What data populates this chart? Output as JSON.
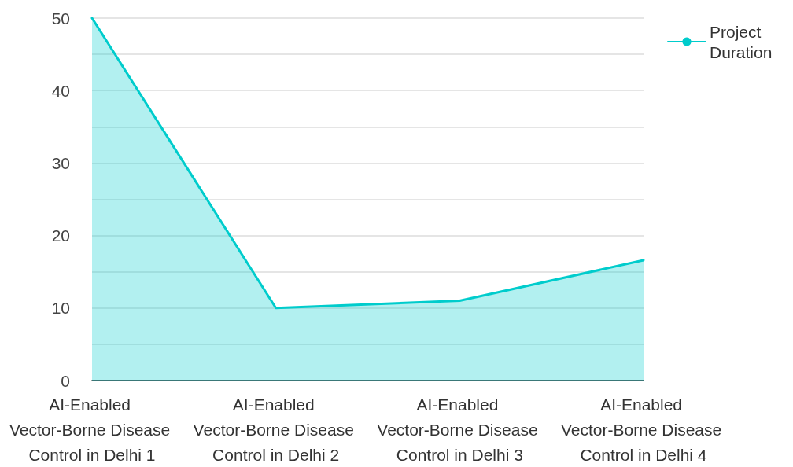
{
  "chart_data": {
    "type": "area",
    "categories": [
      "AI-Enabled Vector-Borne Disease Control in Delhi 1",
      "AI-Enabled Vector-Borne Disease Control in Delhi 2",
      "AI-Enabled Vector-Borne Disease Control in Delhi 3",
      "AI-Enabled Vector-Borne Disease Control in Delhi 4"
    ],
    "series": [
      {
        "name": "Project Duration",
        "color": "#00cccc",
        "values": [
          50,
          10,
          11,
          16.6
        ]
      }
    ],
    "ylim": [
      0,
      50
    ],
    "yticks": [
      0,
      {
        "value": 5,
        "label": null
      },
      10,
      {
        "value": 15,
        "label": null
      },
      20,
      {
        "value": 25,
        "label": null
      },
      30,
      {
        "value": 35,
        "label": null
      },
      40,
      {
        "value": 45,
        "label": null
      },
      50
    ],
    "grid": "y",
    "legend": "top right"
  }
}
